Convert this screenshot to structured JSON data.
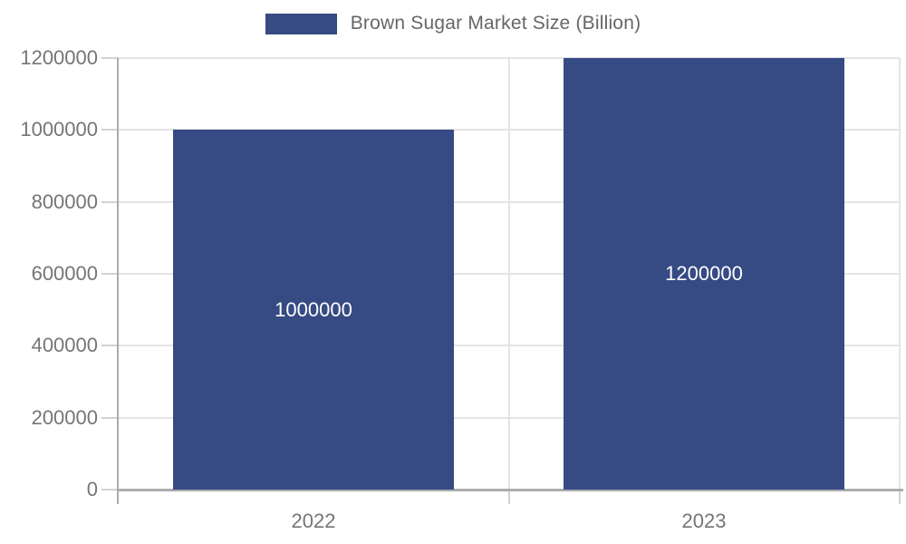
{
  "chart_data": {
    "type": "bar",
    "legend": {
      "position": "top-center",
      "items": [
        {
          "label": "Brown Sugar Market Size (Billion)",
          "color": "#364A84"
        }
      ]
    },
    "categories": [
      "2022",
      "2023"
    ],
    "series": [
      {
        "name": "Brown Sugar Market Size (Billion)",
        "color": "#364A84",
        "values": [
          1000000,
          1200000
        ],
        "data_labels": [
          "1000000",
          "1200000"
        ],
        "data_label_color": "#ffffff"
      }
    ],
    "y_axis": {
      "min": 0,
      "max": 1200000,
      "step": 200000,
      "tick_labels": [
        "0",
        "200000",
        "400000",
        "600000",
        "800000",
        "1000000",
        "1200000"
      ]
    },
    "grid": {
      "horizontal": true,
      "vertical_category_boundaries": true
    },
    "colors": {
      "background": "#ffffff",
      "gridline": "#e4e4e4",
      "tick_mark": "#d2d2d2",
      "axis_border": "#acacac",
      "tick_text": "#757575",
      "legend_text": "#666666"
    }
  }
}
